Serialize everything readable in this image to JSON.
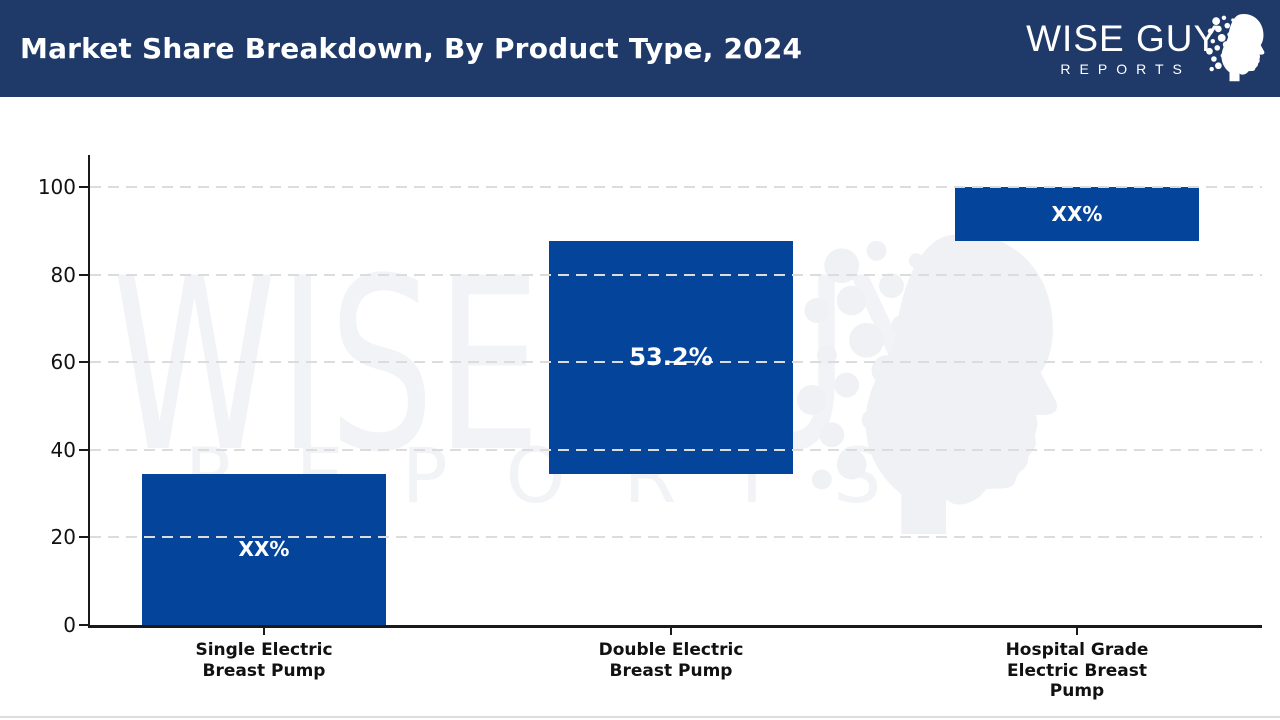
{
  "header": {
    "title": "Market Share Breakdown, By Product Type, 2024",
    "logo": {
      "line1": "WISE GUY",
      "line2": "REPORTS"
    }
  },
  "watermark": {
    "line1": "WISE GUY",
    "line2": "REPORTS"
  },
  "colors": {
    "header_bg": "#1F3A68",
    "bar": "#04449B",
    "grid": "#DCDCDC",
    "axis": "#1A1A1A",
    "watermark": "#F2F3F6",
    "bar_label_text": "#FFFFFF"
  },
  "chart_data": {
    "type": "bar",
    "subtype": "waterfall-stacked-market-share",
    "title": "Market Share Breakdown, By Product Type, 2024",
    "categories": [
      "Single Electric\nBreast Pump",
      "Double Electric\nBreast Pump",
      "Hospital Grade\nElectric Breast\nPump"
    ],
    "segments": [
      {
        "category": "Single Electric Breast Pump",
        "start": 0,
        "end": 34.5,
        "value": 34.5,
        "label": "XX%"
      },
      {
        "category": "Double Electric Breast Pump",
        "start": 34.5,
        "end": 87.7,
        "value": 53.2,
        "label": "53.2%"
      },
      {
        "category": "Hospital Grade Electric Breast Pump",
        "start": 87.7,
        "end": 100,
        "value": 12.3,
        "label": "XX%"
      }
    ],
    "yticks": [
      0,
      20,
      40,
      60,
      80,
      100
    ],
    "ylim": [
      0,
      100
    ],
    "xlabel": "",
    "ylabel": "",
    "grid": "horizontal-dashed",
    "legend": "none"
  }
}
